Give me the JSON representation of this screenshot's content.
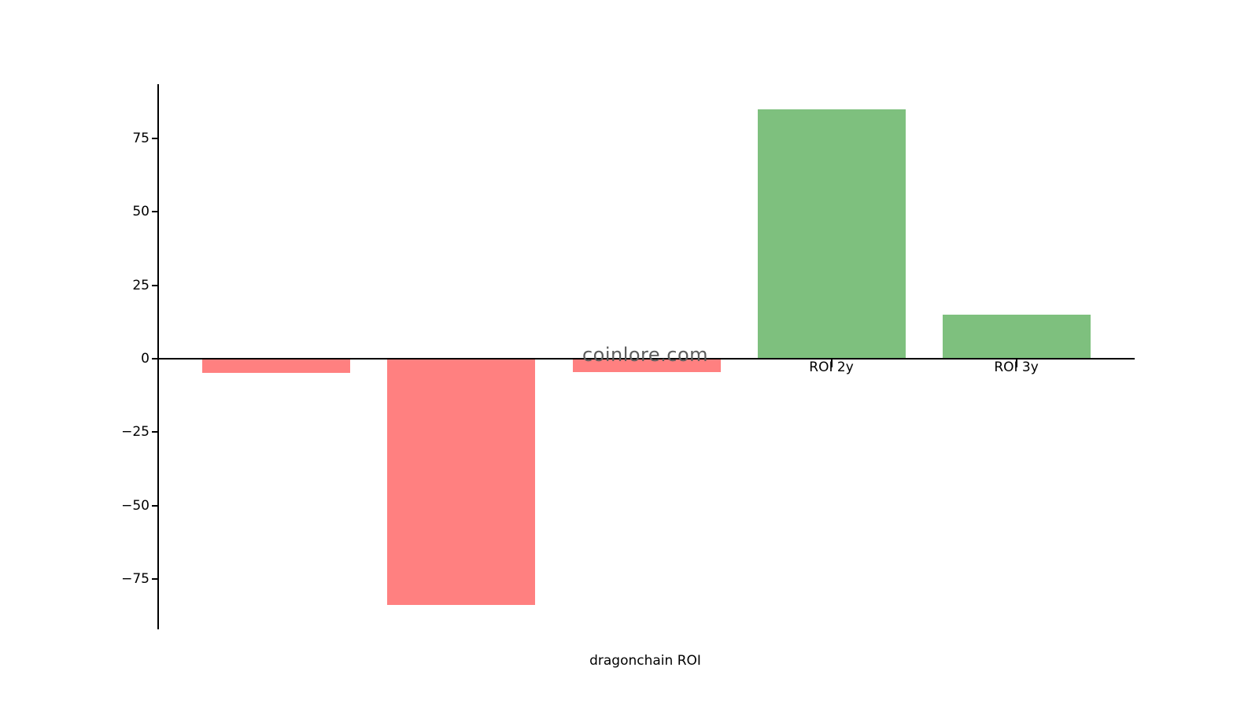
{
  "chart_data": {
    "type": "bar",
    "title": "",
    "xlabel": "dragonchain ROI",
    "ylabel": "",
    "watermark": "coinlore.com",
    "categories": [
      "",
      "",
      "",
      "ROI 2y",
      "ROI 3y"
    ],
    "values": [
      -4.8,
      -84,
      -4.6,
      85,
      15
    ],
    "colors": {
      "positive": "#7ec07e",
      "negative": "#ff8080",
      "axis": "#000000",
      "watermark": "#5c5c5c",
      "background": "#ffffff"
    },
    "yticks": [
      {
        "label": "75",
        "value": 75
      },
      {
        "label": "50",
        "value": 50
      },
      {
        "label": "25",
        "value": 25
      },
      {
        "label": "0",
        "value": 0
      },
      {
        "label": "−25",
        "value": -25
      },
      {
        "label": "−50",
        "value": -50
      },
      {
        "label": "−75",
        "value": -75
      }
    ],
    "ylim": [
      -92.4,
      93.5
    ],
    "grid": false,
    "legend": null
  }
}
